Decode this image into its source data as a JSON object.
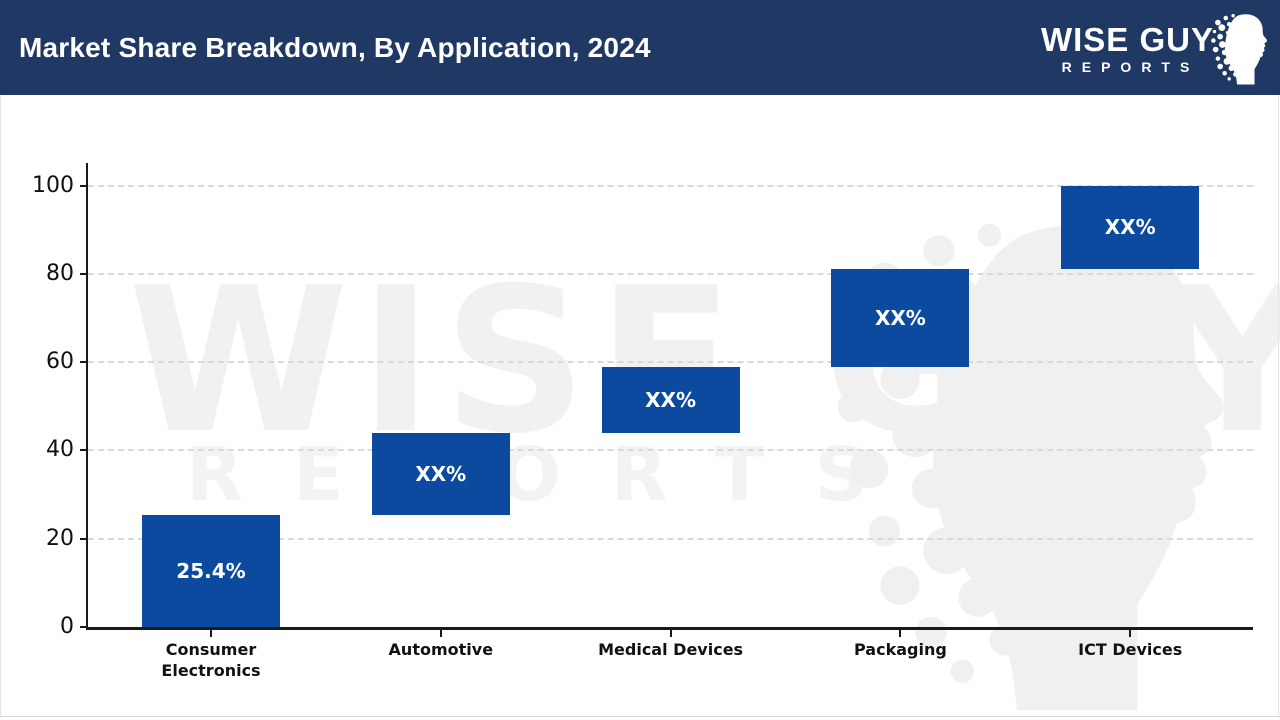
{
  "header": {
    "title": "Market Share Breakdown, By Application, 2024"
  },
  "brand": {
    "line1": "WISE GUY",
    "line2": "REPORTS",
    "head_icon": "dot-head-profile"
  },
  "watermark": {
    "line1": "WISE GUY",
    "line2": "REPORTS",
    "head_icon": "dot-head-profile"
  },
  "colors": {
    "header_bg": "#1f3864",
    "bar_fill": "#0b4a9e",
    "gridline": "#d9d9d9",
    "axis": "#1a1a1a",
    "bar_label_text": "#ffffff",
    "watermark": "#f1f1f1"
  },
  "chart_data": {
    "type": "bar",
    "subtype": "waterfall",
    "title": "Market Share Breakdown, By Application, 2024",
    "categories": [
      "Consumer Electronics",
      "Automotive",
      "Medical Devices",
      "Packaging",
      "ICT Devices"
    ],
    "segments": [
      {
        "category": "Consumer Electronics",
        "start": 0,
        "end": 25.4,
        "label": "25.4%"
      },
      {
        "category": "Automotive",
        "start": 25.4,
        "end": 44,
        "label": "XX%"
      },
      {
        "category": "Medical Devices",
        "start": 44,
        "end": 59,
        "label": "XX%"
      },
      {
        "category": "Packaging",
        "start": 59,
        "end": 81,
        "label": "XX%"
      },
      {
        "category": "ICT Devices",
        "start": 81,
        "end": 100,
        "label": "XX%"
      }
    ],
    "xlabel": "",
    "ylabel": "",
    "ylim": [
      0,
      100
    ],
    "yticks": [
      0,
      20,
      40,
      60,
      80,
      100
    ],
    "grid": "horizontal-dashed",
    "legend": "none"
  }
}
